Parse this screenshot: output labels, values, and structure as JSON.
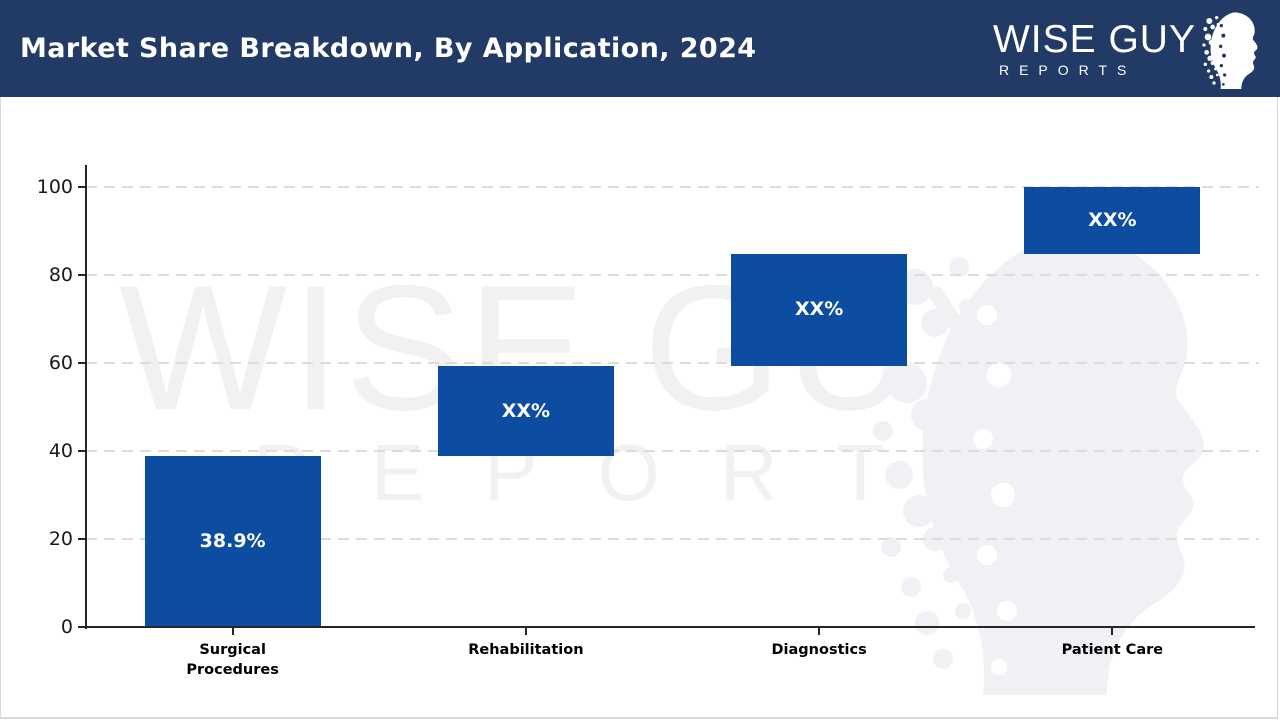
{
  "header": {
    "title": "Market Share Breakdown, By Application, 2024",
    "bg_color": "#223a66",
    "logo": {
      "line1": "WISE GUY",
      "line2": "REPORTS"
    }
  },
  "watermark": {
    "line1": "WISE GUY",
    "line2": "REPORTS"
  },
  "chart_data": {
    "type": "bar",
    "subtype": "waterfall",
    "title": "Market Share Breakdown, By Application, 2024",
    "xlabel": "",
    "ylabel": "",
    "categories": [
      "Surgical Procedures",
      "Rehabilitation",
      "Diagnostics",
      "Patient Care"
    ],
    "segments": [
      {
        "category": "Surgical Procedures",
        "start": 0,
        "end": 38.9,
        "label": "38.9%"
      },
      {
        "category": "Rehabilitation",
        "start": 38.9,
        "end": 59.4,
        "label": "XX%"
      },
      {
        "category": "Diagnostics",
        "start": 59.4,
        "end": 84.8,
        "label": "XX%"
      },
      {
        "category": "Patient Care",
        "start": 84.8,
        "end": 100,
        "label": "XX%"
      }
    ],
    "y_ticks": [
      0,
      20,
      40,
      60,
      80,
      100
    ],
    "ylim": [
      0,
      100
    ],
    "bar_color": "#0c4da2",
    "bar_label_color": "#ffffff",
    "grid": "dashed-horizontal",
    "legend": "none"
  }
}
